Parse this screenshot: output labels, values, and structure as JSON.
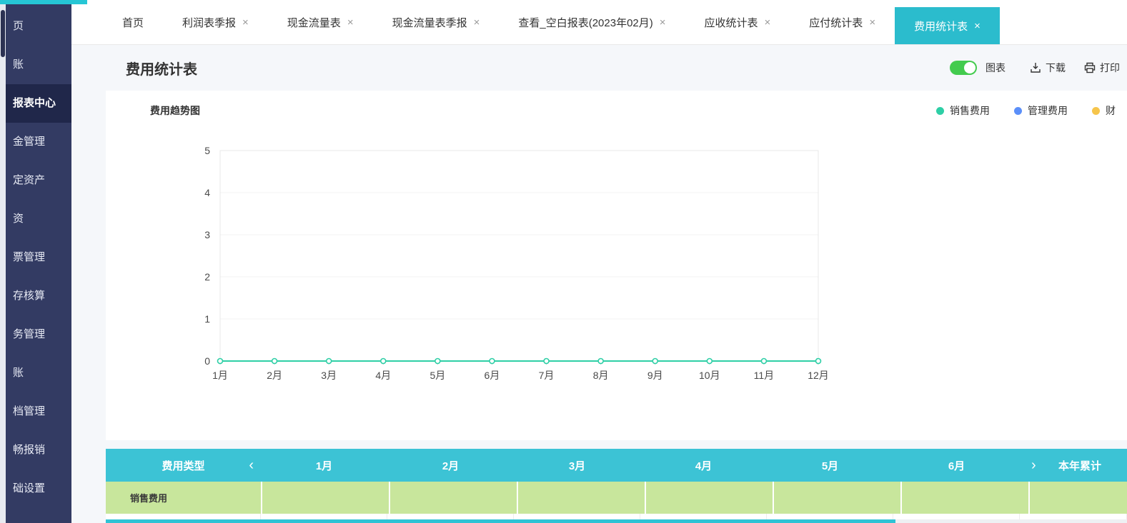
{
  "colors": {
    "accent_cyan": "#2bbccd",
    "table_header_cyan": "#3cc3d5",
    "sidebar_navy": "#333b63",
    "sidebar_active": "#20274a",
    "toggle_green": "#43cb4e",
    "row_highlight_green": "#c8e69c",
    "series_teal": "#2ecfa6",
    "series_blue": "#5b8ff9",
    "series_yellow": "#f6c54b"
  },
  "sidebar": {
    "active_index": 2,
    "items": [
      "页",
      "账",
      "报表中心",
      "金管理",
      "定资产",
      "资",
      "票管理",
      "存核算",
      "务管理",
      "账",
      "档管理",
      "畅报销",
      "础设置"
    ]
  },
  "tabs": {
    "close_icon": "×",
    "items": [
      {
        "label": "首页",
        "closable": false,
        "active": false
      },
      {
        "label": "利润表季报",
        "closable": true,
        "active": false
      },
      {
        "label": "现金流量表",
        "closable": true,
        "active": false
      },
      {
        "label": "现金流量表季报",
        "closable": true,
        "active": false
      },
      {
        "label": "查看_空白报表(2023年02月)",
        "closable": true,
        "active": false
      },
      {
        "label": "应收统计表",
        "closable": true,
        "active": false
      },
      {
        "label": "应付统计表",
        "closable": true,
        "active": false
      },
      {
        "label": "费用统计表",
        "closable": true,
        "active": true
      }
    ]
  },
  "page": {
    "title": "费用统计表",
    "toggle_label": "图表",
    "toggle_on": true,
    "download_label": "下载",
    "print_label": "打印"
  },
  "chart": {
    "title": "费用趋势图",
    "legend": [
      {
        "label": "销售费用",
        "color": "#2ecfa6"
      },
      {
        "label": "管理费用",
        "color": "#5b8ff9"
      },
      {
        "label": "财",
        "color": "#f6c54b"
      }
    ]
  },
  "chart_data": {
    "type": "line",
    "title": "费用趋势图",
    "x": [
      "1月",
      "2月",
      "3月",
      "4月",
      "5月",
      "6月",
      "7月",
      "8月",
      "9月",
      "10月",
      "11月",
      "12月"
    ],
    "series": [
      {
        "name": "销售费用",
        "color": "#2ecfa6",
        "values": [
          0,
          0,
          0,
          0,
          0,
          0,
          0,
          0,
          0,
          0,
          0,
          0
        ]
      }
    ],
    "xlabel": "",
    "ylabel": "",
    "ylim": [
      0,
      5
    ],
    "yticks": [
      0,
      1,
      2,
      3,
      4,
      5
    ],
    "grid": true,
    "legend_position": "top-right"
  },
  "table": {
    "first_header": "费用类型",
    "month_headers": [
      "1月",
      "2月",
      "3月",
      "4月",
      "5月",
      "6月"
    ],
    "last_header": "本年累计",
    "prev_icon": "‹",
    "next_icon": "›",
    "rows": [
      {
        "name": "销售费用",
        "values": [
          "",
          "",
          "",
          "",
          "",
          ""
        ],
        "total": "",
        "highlight": "#c8e69c"
      }
    ]
  }
}
